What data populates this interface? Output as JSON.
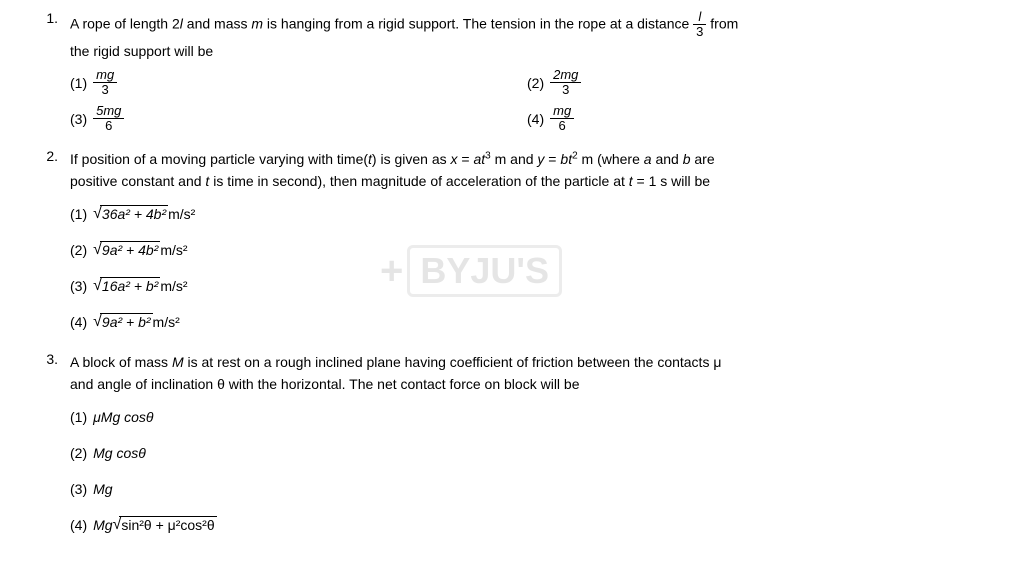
{
  "watermark": {
    "plus": "+",
    "brand": "BYJU'S"
  },
  "questions": [
    {
      "num": "1.",
      "text_parts": {
        "p1": "A rope of length 2",
        "l": "l",
        "p2": " and mass ",
        "m": "m",
        "p3": " is hanging from a rigid support. The tension in the rope at a distance ",
        "frac_num": "l",
        "frac_den": "3",
        "p4": " from",
        "p5": "the rigid support will be"
      },
      "opts": [
        {
          "n": "(1)",
          "num": "mg",
          "den": "3"
        },
        {
          "n": "(2)",
          "num": "2mg",
          "den": "3"
        },
        {
          "n": "(3)",
          "num": "5mg",
          "den": "6"
        },
        {
          "n": "(4)",
          "num": "mg",
          "den": "6"
        }
      ]
    },
    {
      "num": "2.",
      "text_parts": {
        "p1": "If position of a moving particle varying with time(",
        "t": "t",
        "p2": ") is given as ",
        "x": "x",
        "eq1": " = ",
        "a": "a",
        "t3": "t",
        "pow3": "3",
        "unit1": " m and ",
        "y": "y",
        "eq2": " = ",
        "b": "b",
        "t2": "t",
        "pow2": "2",
        "unit2": " m (where ",
        "a2": "a",
        "and": " and ",
        "b2": "b",
        "p3": " are",
        "p4": "positive constant and ",
        "t4": "t",
        "p5": " is time in second), then magnitude of acceleration of the particle at ",
        "t5": "t",
        "eq3": " = 1 s will be"
      },
      "opts": [
        {
          "n": "(1)",
          "rad": "36a² + 4b²",
          "unit": " m/s²"
        },
        {
          "n": "(2)",
          "rad": "9a² + 4b²",
          "unit": " m/s²"
        },
        {
          "n": "(3)",
          "rad": "16a² + b²",
          "unit": " m/s²"
        },
        {
          "n": "(4)",
          "rad": "9a² + b²",
          "unit": " m/s²"
        }
      ]
    },
    {
      "num": "3.",
      "text_parts": {
        "p1": "A block of mass ",
        "M": "M",
        "p2": " is at rest on a rough inclined plane having coefficient of friction between the contacts μ",
        "p3": "and angle of inclination θ with the horizontal. The net contact force on block will be"
      },
      "opts": [
        {
          "n": "(1)",
          "txt": "μMg cosθ"
        },
        {
          "n": "(2)",
          "txt": "Mg cosθ"
        },
        {
          "n": "(3)",
          "txt": "Mg"
        },
        {
          "n": "(4)",
          "pre": "Mg",
          "rad": "sin²θ + μ²cos²θ"
        }
      ]
    }
  ]
}
